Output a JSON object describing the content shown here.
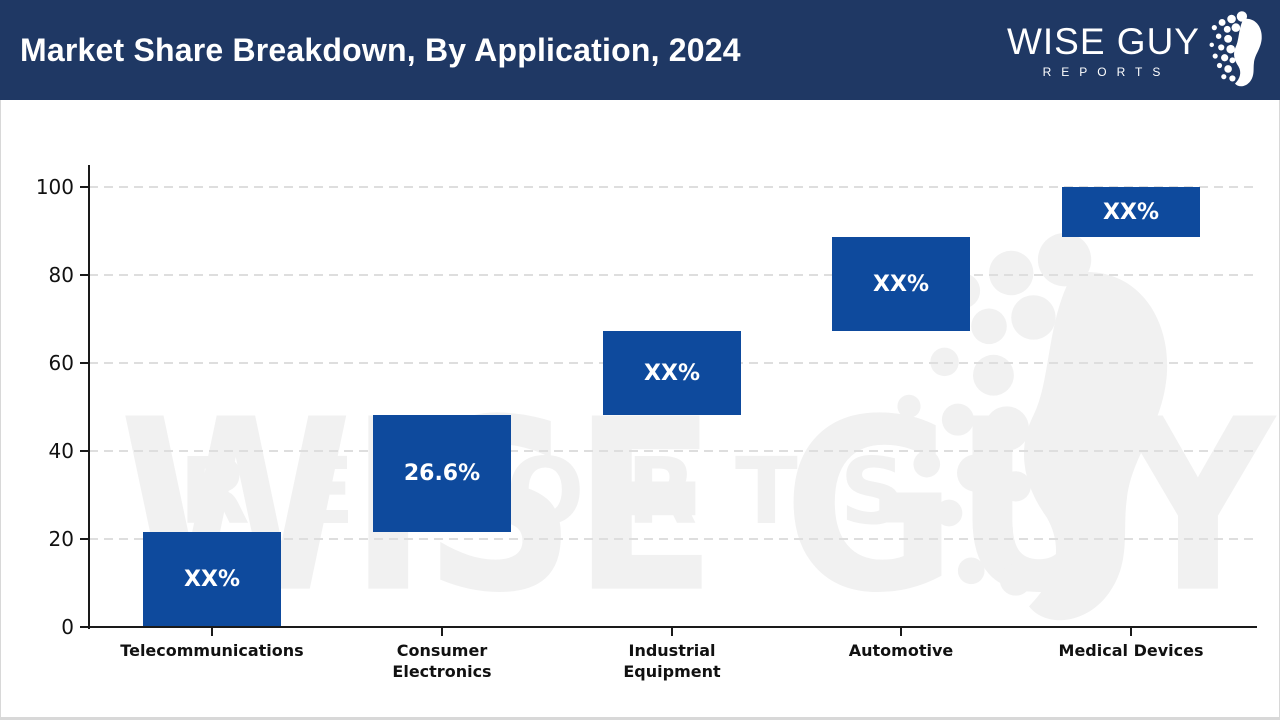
{
  "header": {
    "title": "Market Share Breakdown, By Application, 2024",
    "logo": {
      "wordmark": "WISE GUY",
      "subtext": "REPORTS"
    }
  },
  "watermark": {
    "line1": "WISE GUY",
    "line2": "REPORTS"
  },
  "colors": {
    "header_bg": "#1f3864",
    "bar": "#0e4a9d",
    "bar_label_text": "#ffffff",
    "gridline": "#dedede",
    "axis": "#1a1a1a",
    "watermark": "#f1f1f1",
    "card_border": "#d8d8d8"
  },
  "chart_data": {
    "type": "bar",
    "subtype": "floating-waterfall",
    "title": "Market Share Breakdown, By Application, 2024",
    "categories": [
      "Telecommunications",
      "Consumer Electronics",
      "Industrial Equipment",
      "Automotive",
      "Medical Devices"
    ],
    "category_lines": [
      [
        "Telecommunications"
      ],
      [
        "Consumer",
        "Electronics"
      ],
      [
        "Industrial",
        "Equipment"
      ],
      [
        "Automotive"
      ],
      [
        "Medical Devices"
      ]
    ],
    "bars": [
      {
        "category": "Telecommunications",
        "from": 0,
        "to": 21.5,
        "height": 21.5,
        "label": "XX%"
      },
      {
        "category": "Consumer Electronics",
        "from": 21.5,
        "to": 48.1,
        "height": 26.6,
        "label": "26.6%"
      },
      {
        "category": "Industrial Equipment",
        "from": 48.1,
        "to": 67.2,
        "height": 19.1,
        "label": "XX%"
      },
      {
        "category": "Automotive",
        "from": 67.2,
        "to": 88.6,
        "height": 21.4,
        "label": "XX%"
      },
      {
        "category": "Medical Devices",
        "from": 88.6,
        "to": 100,
        "height": 11.4,
        "label": "XX%"
      }
    ],
    "yticks": [
      0,
      20,
      40,
      60,
      80,
      100
    ],
    "ylim": [
      0,
      100
    ],
    "xlabel": "",
    "ylabel": "",
    "grid": "dashed-horizontal",
    "legend": "none"
  }
}
